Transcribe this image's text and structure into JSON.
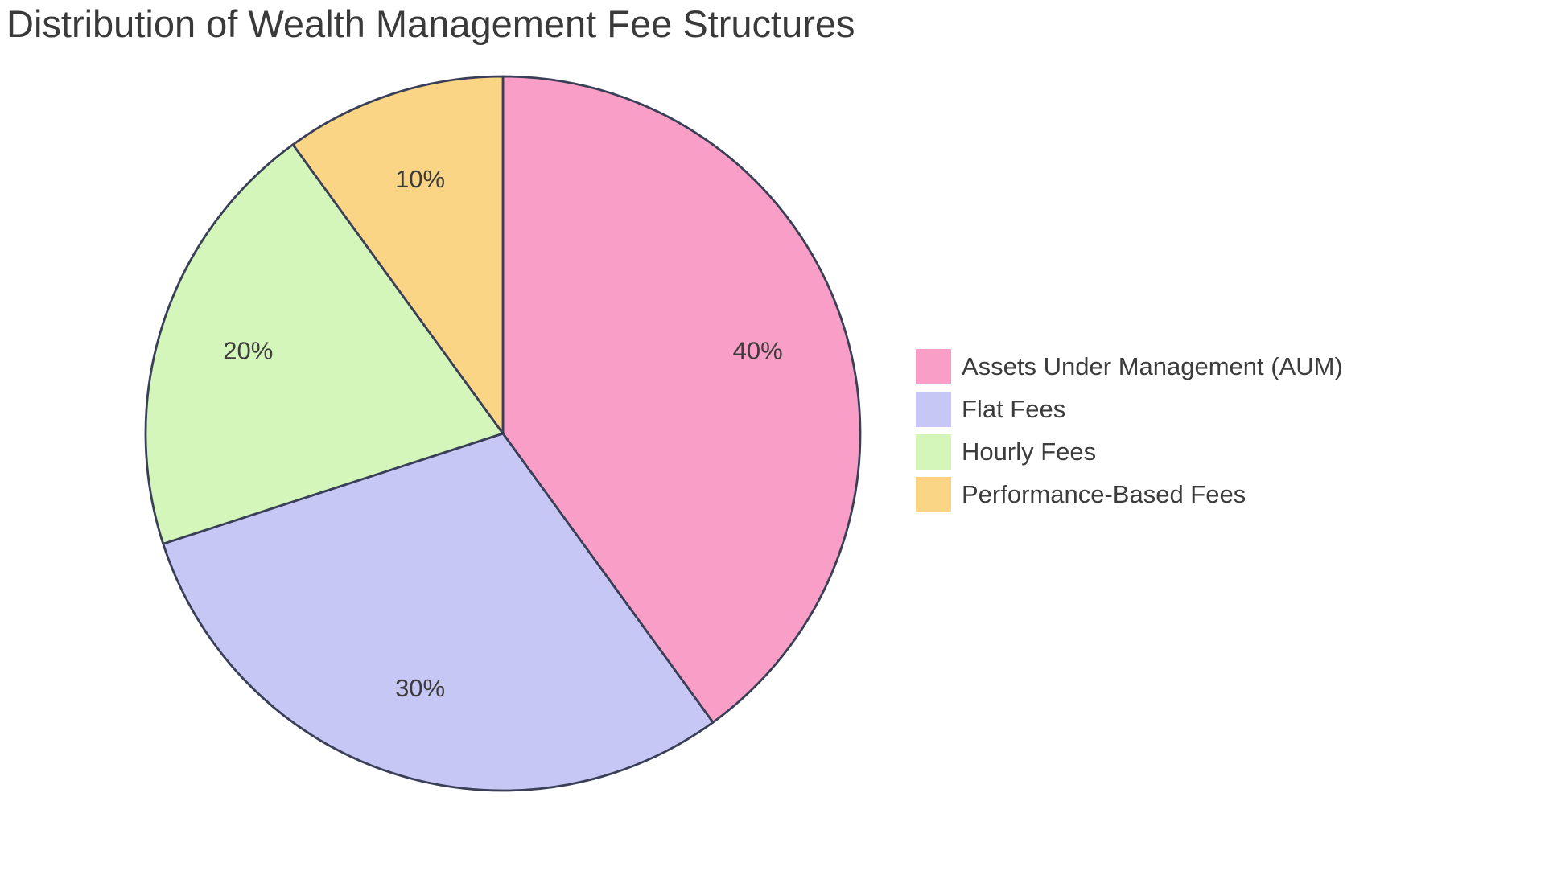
{
  "page": {
    "background_color": "#ffffff"
  },
  "chart_data": {
    "type": "pie",
    "title": "Distribution of Wealth Management Fee Structures",
    "slices": [
      {
        "label": "Assets Under Management (AUM)",
        "value": 40,
        "pct_label": "40%",
        "color": "#f99fc7"
      },
      {
        "label": "Flat Fees",
        "value": 30,
        "pct_label": "30%",
        "color": "#c7c7f5"
      },
      {
        "label": "Hourly Fees",
        "value": 20,
        "pct_label": "20%",
        "color": "#d5f6bb"
      },
      {
        "label": "Performance-Based Fees",
        "value": 10,
        "pct_label": "10%",
        "color": "#fad585"
      }
    ],
    "start_angle_deg": 90,
    "direction": "clockwise",
    "label_distance": 0.75,
    "legend_position": "right",
    "styles": {
      "edge_color": "#3a3f58",
      "edge_width": 2.8,
      "percent_label_color": "#3c3c3c",
      "title_color": "#3a3a3a"
    }
  }
}
